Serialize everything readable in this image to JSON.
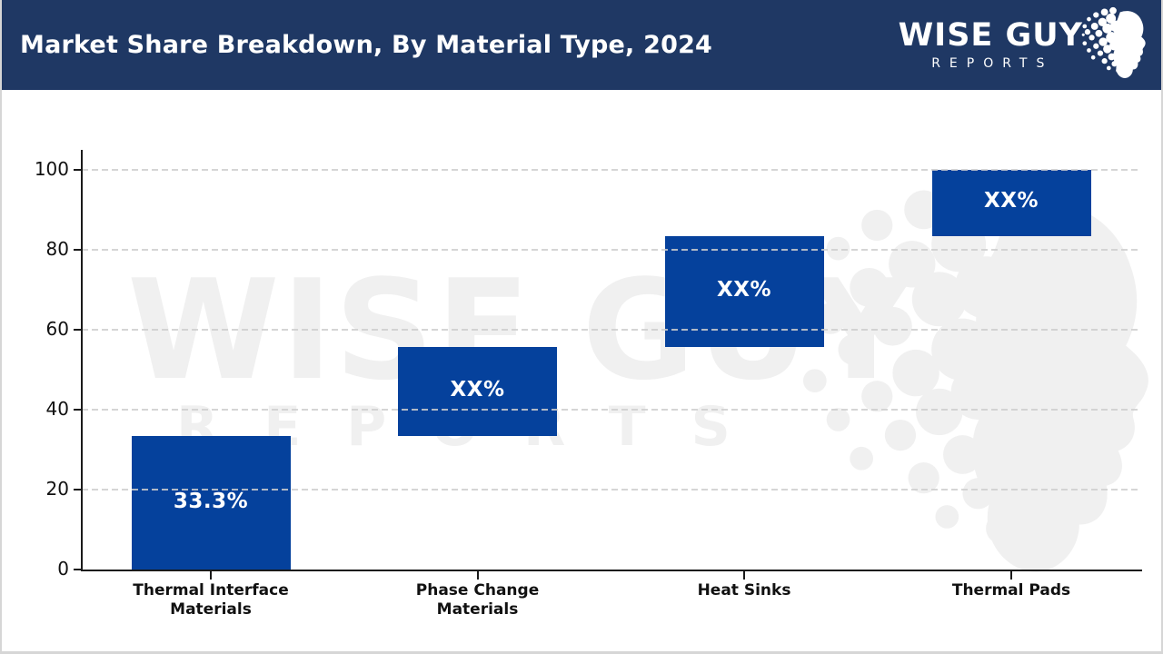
{
  "header": {
    "title": "Market Share Breakdown, By Material Type, 2024",
    "logo": {
      "line1": "WISE GUY",
      "line2": "REPORTS"
    }
  },
  "watermark": {
    "line1": "WISE GUY",
    "line2": "REPORTS"
  },
  "chart_data": {
    "type": "bar",
    "subtype": "waterfall",
    "title": "Market Share Breakdown, By Material Type, 2024",
    "categories": [
      [
        "Thermal Interface",
        "Materials"
      ],
      [
        "Phase Change",
        "Materials"
      ],
      [
        "Heat Sinks"
      ],
      [
        "Thermal Pads"
      ]
    ],
    "segments": [
      {
        "category": "Thermal Interface Materials",
        "start": 0,
        "end": 33.3,
        "label": "33.3%"
      },
      {
        "category": "Phase Change Materials",
        "start": 33.3,
        "end": 55.7,
        "label": "XX%"
      },
      {
        "category": "Heat Sinks",
        "start": 55.7,
        "end": 83.5,
        "label": "XX%"
      },
      {
        "category": "Thermal Pads",
        "start": 83.5,
        "end": 100,
        "label": "XX%"
      }
    ],
    "y_ticks": [
      0,
      20,
      40,
      60,
      80,
      100
    ],
    "ylim": [
      0,
      105
    ],
    "xlabel": "",
    "ylabel": "",
    "grid": "horizontal-dashed",
    "legend": "none",
    "bar_color": "#05419c",
    "bar_label_color": "#ffffff",
    "axis_color": "#1a1a1a",
    "header_color": "#1f3864",
    "watermark_color": "#f0f0f0"
  }
}
